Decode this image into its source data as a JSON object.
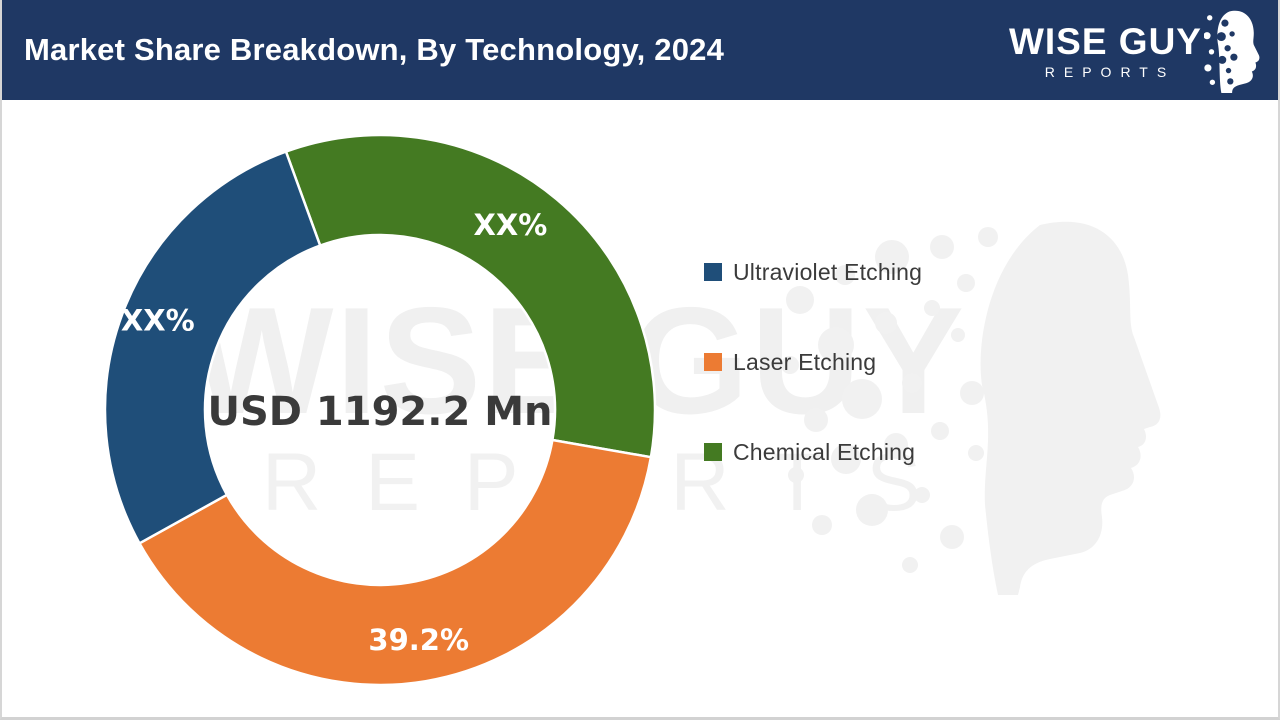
{
  "header": {
    "title": "Market Share Breakdown, By Technology, 2024",
    "bg_color": "#1F3864",
    "logo": {
      "line1": "WISE GUY",
      "line2": "REPORTS"
    }
  },
  "watermark": {
    "line1": "WISE GUY",
    "line2": "REPORTS"
  },
  "chart_data": {
    "type": "pie",
    "subtype": "donut",
    "title": "Market Share Breakdown, By Technology, 2024",
    "center_label": "USD 1192.2 Mn",
    "start_angle_deg": -20,
    "inner_radius_ratio": 0.636,
    "segments": [
      {
        "label": "Chemical Etching",
        "color": "#447A22",
        "value_label": "XX%",
        "percent_est": 33.3,
        "label_radius": 228,
        "label_dx": -16,
        "label_dy": -10
      },
      {
        "label": "Laser Etching",
        "color": "#EC7B33",
        "value_label": "39.2%",
        "percent_est": 39.2,
        "label_radius": 233,
        "label_dx": 0,
        "label_dy": 0
      },
      {
        "label": "Ultraviolet Etching",
        "color": "#1F4E79",
        "value_label": "XX%",
        "percent_est": 27.5,
        "label_radius": 233,
        "label_dx": -4,
        "label_dy": -8
      }
    ],
    "legend_position": "right",
    "legend": [
      {
        "label": "Ultraviolet Etching",
        "color": "#1F4E79"
      },
      {
        "label": "Laser Etching",
        "color": "#EC7B33"
      },
      {
        "label": "Chemical Etching",
        "color": "#447A22"
      }
    ]
  }
}
